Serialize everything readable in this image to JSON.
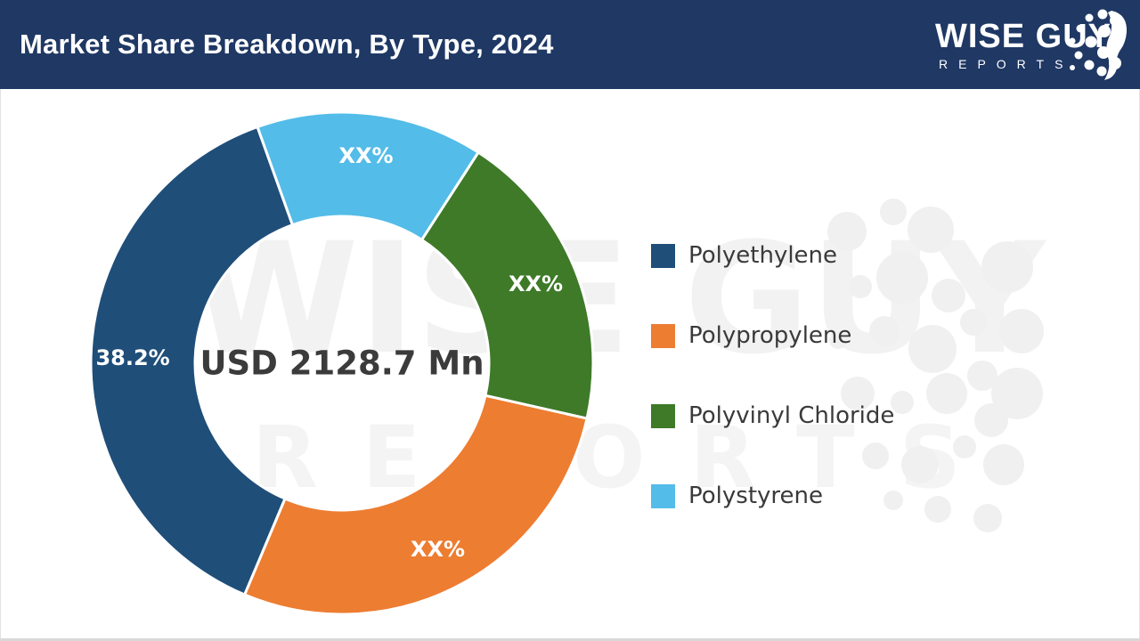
{
  "header": {
    "title": "Market Share Breakdown, By Type, 2024"
  },
  "logo": {
    "name": "WISE GUY",
    "subtitle": "REPORTS"
  },
  "watermark": {
    "line1": "WISE GUY",
    "line2": "REPORTS"
  },
  "chart_data": {
    "type": "donut",
    "title": "Market Share Breakdown, By Type, 2024",
    "center_label": "USD 2128.7 Mn",
    "legend_position": "right",
    "start_angle_deg": 202.8,
    "draw_order": [
      0,
      3,
      2,
      1
    ],
    "outer_radius": 282,
    "inner_radius": 165,
    "label_radius": 235,
    "segments": [
      {
        "name": "Polyethylene",
        "value_pct": 38.2,
        "label": "38.2%",
        "color": "#1f4e79"
      },
      {
        "name": "Polypropylene",
        "value_pct": 27.8,
        "label": "XX%",
        "color": "#ed7d31"
      },
      {
        "name": "Polyvinyl Chloride",
        "value_pct": 19.4,
        "label": "XX%",
        "color": "#3e7a28"
      },
      {
        "name": "Polystyrene",
        "value_pct": 14.6,
        "label": "XX%",
        "color": "#53bce8"
      }
    ],
    "colors": {
      "header_bg": "#1f3864",
      "center_text": "#3b3b3b",
      "legend_text": "#3a3a3a",
      "watermark": "#f2f2f2"
    }
  }
}
